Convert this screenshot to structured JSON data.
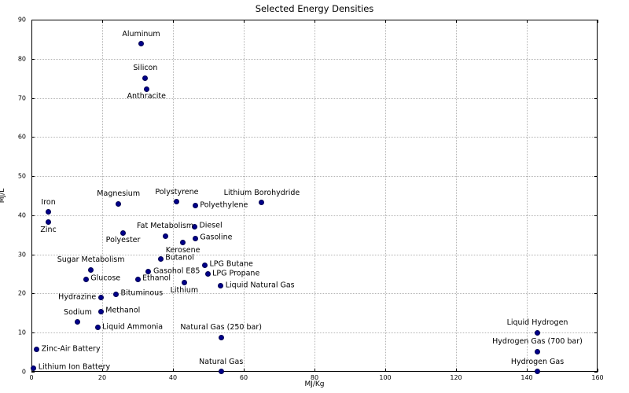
{
  "chart_data": {
    "type": "scatter",
    "title": "Selected Energy Densities",
    "xlabel": "MJ/Kg",
    "ylabel": "MJ/L",
    "xlim": [
      0,
      160
    ],
    "ylim": [
      0,
      90
    ],
    "x_ticks": [
      0,
      20,
      40,
      60,
      80,
      100,
      120,
      140,
      160
    ],
    "y_ticks": [
      0,
      10,
      20,
      30,
      40,
      50,
      60,
      70,
      80,
      90
    ],
    "grid": true,
    "grid_style": "dotted",
    "grid_color": "#b5b5b5",
    "marker_color": "#00008b",
    "marker_edge_color": "#000050",
    "legend": "none",
    "points": [
      {
        "label": "Aluminum",
        "x": 31,
        "y": 83.8,
        "pos": "above"
      },
      {
        "label": "Silicon",
        "x": 32.2,
        "y": 75.1,
        "pos": "above"
      },
      {
        "label": "Anthracite",
        "x": 32.5,
        "y": 72.3,
        "pos": "below"
      },
      {
        "label": "Magnesium",
        "x": 24.6,
        "y": 42.9,
        "pos": "above"
      },
      {
        "label": "Polystyrene",
        "x": 41.1,
        "y": 43.4,
        "pos": "above"
      },
      {
        "label": "Lithium Borohydride",
        "x": 65.1,
        "y": 43.2,
        "pos": "above"
      },
      {
        "label": "Polyethylene",
        "x": 46.3,
        "y": 42.4,
        "pos": "right"
      },
      {
        "label": "Iron",
        "x": 4.8,
        "y": 40.8,
        "pos": "above"
      },
      {
        "label": "Zinc",
        "x": 4.8,
        "y": 38.2,
        "pos": "below"
      },
      {
        "label": "Diesel",
        "x": 46.1,
        "y": 37.1,
        "pos": "right"
      },
      {
        "label": "Polyester",
        "x": 25.9,
        "y": 35.5,
        "pos": "below"
      },
      {
        "label": "Fat Metabolism",
        "x": 37.8,
        "y": 34.7,
        "pos": "above"
      },
      {
        "label": "Gasoline",
        "x": 46.3,
        "y": 34.1,
        "pos": "right"
      },
      {
        "label": "Kerosene",
        "x": 42.8,
        "y": 33.0,
        "pos": "below"
      },
      {
        "label": "Butanol",
        "x": 36.5,
        "y": 28.9,
        "pos": "right"
      },
      {
        "label": "Sugar Metabolism",
        "x": 16.8,
        "y": 26.1,
        "pos": "above"
      },
      {
        "label": "LPG Butane",
        "x": 49.0,
        "y": 27.3,
        "pos": "right"
      },
      {
        "label": "Gasohol E85",
        "x": 33.1,
        "y": 25.6,
        "pos": "right"
      },
      {
        "label": "LPG Propane",
        "x": 49.8,
        "y": 25.0,
        "pos": "right"
      },
      {
        "label": "Glucose",
        "x": 15.4,
        "y": 23.7,
        "pos": "right"
      },
      {
        "label": "Ethanol",
        "x": 30.0,
        "y": 23.7,
        "pos": "right"
      },
      {
        "label": "Lithium",
        "x": 43.2,
        "y": 22.8,
        "pos": "below"
      },
      {
        "label": "Liquid Natural Gas",
        "x": 53.5,
        "y": 21.9,
        "pos": "right"
      },
      {
        "label": "Bituminous",
        "x": 23.9,
        "y": 19.8,
        "pos": "right"
      },
      {
        "label": "Hydrazine",
        "x": 19.6,
        "y": 18.9,
        "pos": "left"
      },
      {
        "label": "Methanol",
        "x": 19.6,
        "y": 15.4,
        "pos": "right"
      },
      {
        "label": "Sodium",
        "x": 13.1,
        "y": 12.7,
        "pos": "above"
      },
      {
        "label": "Liquid Ammonia",
        "x": 18.7,
        "y": 11.3,
        "pos": "right"
      },
      {
        "label": "Natural Gas (250 bar)",
        "x": 53.6,
        "y": 8.8,
        "pos": "above"
      },
      {
        "label": "Zinc-Air Battery",
        "x": 1.5,
        "y": 5.7,
        "pos": "right"
      },
      {
        "label": "Lithium Ion Battery",
        "x": 0.6,
        "y": 1.0,
        "pos": "right"
      },
      {
        "label": "Natural Gas",
        "x": 53.6,
        "y": 0.1,
        "pos": "above"
      },
      {
        "label": "Liquid Hydrogen",
        "x": 143,
        "y": 10.0,
        "pos": "above"
      },
      {
        "label": "Hydrogen Gas (700 bar)",
        "x": 143,
        "y": 5.2,
        "pos": "above"
      },
      {
        "label": "Hydrogen Gas",
        "x": 143,
        "y": 0.1,
        "pos": "above"
      }
    ]
  }
}
